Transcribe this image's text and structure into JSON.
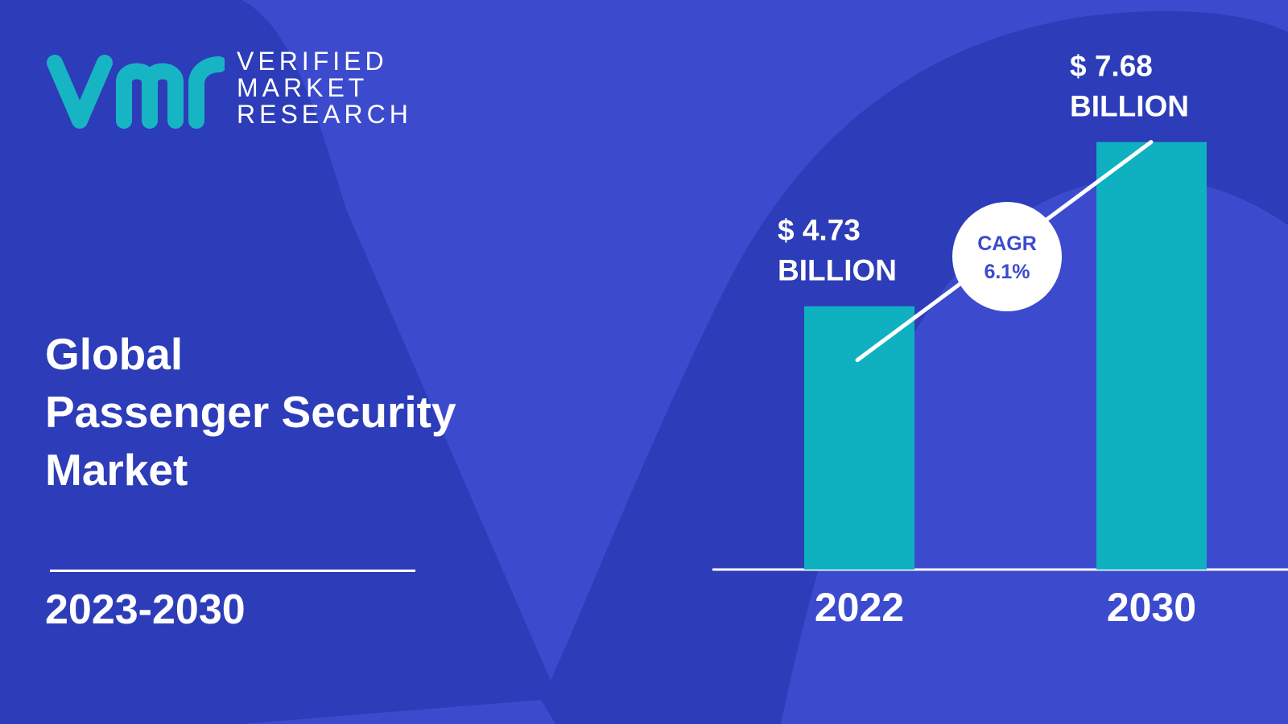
{
  "colors": {
    "background": "#3c4bce",
    "background_shape": "#2d3cb8",
    "bar": "#0fb0c0",
    "logo_accent": "#17b5c4",
    "cagr_badge_text": "#3c4bce"
  },
  "brand": {
    "logo_icon": "vmr-logo-icon",
    "lines": [
      "VERIFIED",
      "MARKET",
      "RESEARCH"
    ]
  },
  "report": {
    "title_lines": [
      "Global",
      "Passenger Security",
      "Market"
    ],
    "period": "2023-2030"
  },
  "chart_data": {
    "type": "bar",
    "categories": [
      "2022",
      "2030"
    ],
    "values": [
      4.73,
      7.68
    ],
    "value_labels": [
      [
        "$ 4.73",
        "BILLION"
      ],
      [
        "$ 7.68",
        "BILLION"
      ]
    ],
    "unit": "BILLION",
    "cagr": {
      "label": "CAGR",
      "value": "6.1%"
    },
    "title": "",
    "xlabel": "",
    "ylabel": "",
    "grid": false,
    "legend": "none"
  }
}
